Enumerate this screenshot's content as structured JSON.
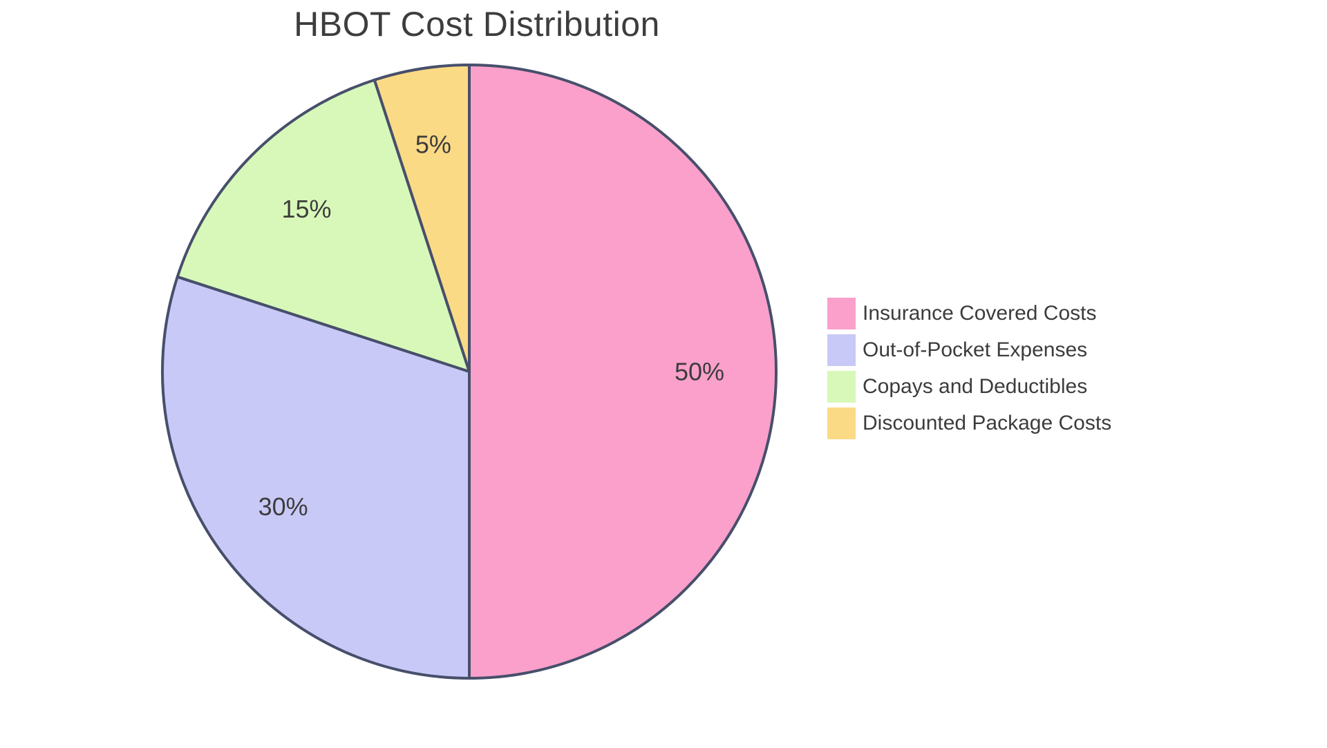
{
  "chart_data": {
    "type": "pie",
    "title": "HBOT Cost Distribution",
    "slices": [
      {
        "label": "Insurance Covered Costs",
        "value": 50,
        "pct_label": "50%",
        "color": "#FAA0CB"
      },
      {
        "label": "Out-of-Pocket Expenses",
        "value": 30,
        "pct_label": "30%",
        "color": "#C9C9F7"
      },
      {
        "label": "Copays and Deductibles",
        "value": 15,
        "pct_label": "15%",
        "color": "#D7F8B9"
      },
      {
        "label": "Discounted Package Costs",
        "value": 5,
        "pct_label": "5%",
        "color": "#FBDA86"
      }
    ],
    "stroke_color": "#474F6B",
    "label_text_color": "#3C3C3C",
    "start_angle": "top",
    "direction": "clockwise",
    "legend_position": "right",
    "grid": false
  }
}
